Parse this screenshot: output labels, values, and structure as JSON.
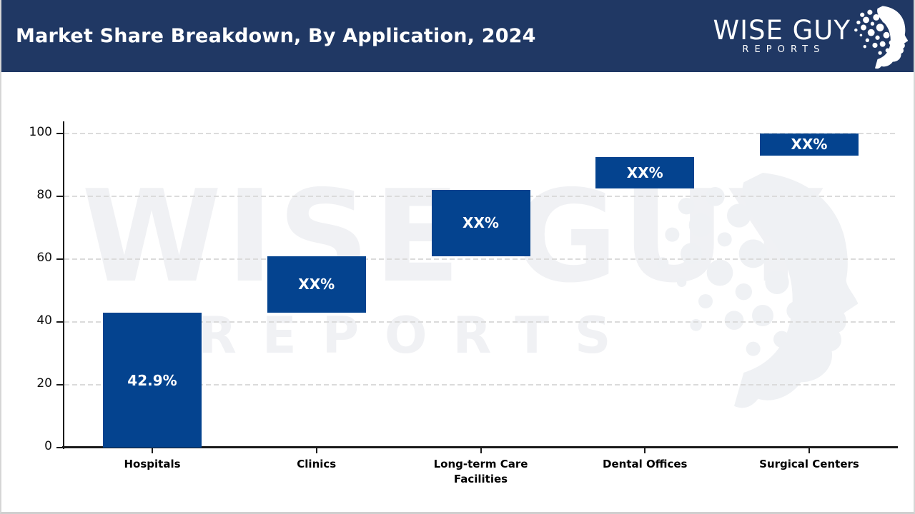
{
  "header": {
    "title": "Market Share Breakdown, By Application, 2024",
    "bg_color": "#203864",
    "logo": {
      "line1": "WISE GUY",
      "line2": "REPORTS",
      "head_icon": "dotted-face-profile"
    }
  },
  "watermark": {
    "line1": "WISE GUY",
    "line2": "REPORTS",
    "color": "#f0f1f4"
  },
  "chart_data": {
    "type": "bar",
    "variant": "waterfall",
    "title": "Market Share Breakdown, By Application, 2024",
    "xlabel": "",
    "ylabel": "",
    "ylim": [
      0,
      105
    ],
    "yticks": [
      0,
      20,
      40,
      60,
      80,
      100
    ],
    "grid": "horizontal-dashed",
    "legend": "none",
    "bar_color": "#04438f",
    "bar_label_color": "#ffffff",
    "axis_color": "#1a1a1a",
    "categories": [
      "Hospitals",
      "Clinics",
      "Long-term Care Facilities",
      "Dental Offices",
      "Surgical Centers"
    ],
    "segments": [
      {
        "category": "Hospitals",
        "start": 0,
        "end": 42.9,
        "label": "42.9%"
      },
      {
        "category": "Clinics",
        "start": 42.9,
        "end": 61.0,
        "label": "XX%"
      },
      {
        "category": "Long-term Care Facilities",
        "start": 61.0,
        "end": 82.0,
        "label": "XX%"
      },
      {
        "category": "Dental Offices",
        "start": 82.5,
        "end": 92.5,
        "label": "XX%"
      },
      {
        "category": "Surgical Centers",
        "start": 93.0,
        "end": 100.0,
        "label": "XX%"
      }
    ]
  }
}
